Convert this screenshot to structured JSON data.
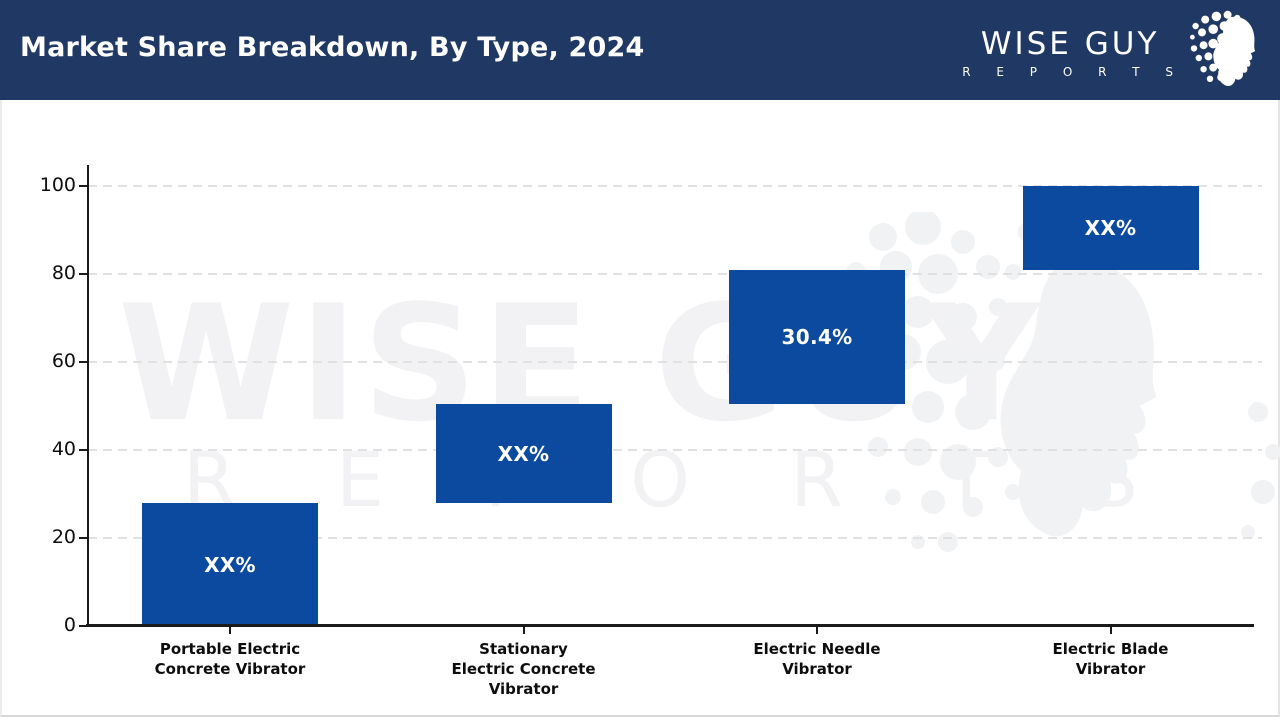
{
  "header": {
    "title": "Market Share Breakdown, By Type, 2024",
    "bg_color": "#1f3864",
    "logo": {
      "line1": "WISE GUY",
      "line2": "R E P O R T S"
    }
  },
  "watermark": {
    "line1": "WISE GUY",
    "line2": "R E P O R T S"
  },
  "chart_data": {
    "type": "bar",
    "variant": "floating-waterfall-segments",
    "title": "Market Share Breakdown, By Type, 2024",
    "categories": [
      "Portable Electric\nConcrete Vibrator",
      "Stationary\nElectric Concrete\nVibrator",
      "Electric Needle\nVibrator",
      "Electric Blade\nVibrator"
    ],
    "bars": [
      {
        "start": 0,
        "end": 27.9,
        "label": "XX%"
      },
      {
        "start": 27.9,
        "end": 50.4,
        "label": "XX%"
      },
      {
        "start": 50.4,
        "end": 80.8,
        "label": "30.4%",
        "value": 30.4
      },
      {
        "start": 80.8,
        "end": 100,
        "label": "XX%"
      }
    ],
    "ylim": [
      0,
      100
    ],
    "yticks": [
      0,
      20,
      40,
      60,
      80,
      100
    ],
    "grid": {
      "axis": "y",
      "style": "dashed",
      "color": "#e1e1e1"
    },
    "legend": "none",
    "bar_color": "#0b4a9e",
    "bar_label_color": "#ffffff",
    "axis_color": "#1a1a1a"
  }
}
